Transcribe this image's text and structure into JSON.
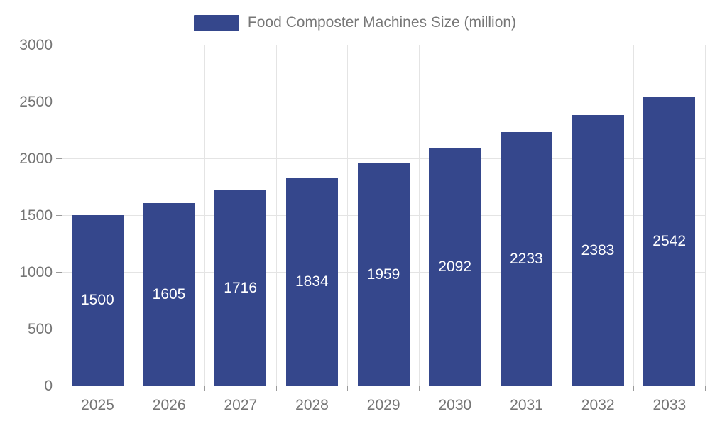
{
  "legend": {
    "label": "Food Composter Machines Size (million)",
    "swatch_color": "#35478C"
  },
  "chart_data": {
    "type": "bar",
    "title": "Food Composter Machines Size (million)",
    "categories": [
      "2025",
      "2026",
      "2027",
      "2028",
      "2029",
      "2030",
      "2031",
      "2032",
      "2033"
    ],
    "values": [
      1500,
      1605,
      1716,
      1834,
      1959,
      2092,
      2233,
      2383,
      2542
    ],
    "series_name": "Food Composter Machines Size (million)",
    "xlabel": "",
    "ylabel": "",
    "ylim": [
      0,
      3000
    ],
    "y_ticks": [
      0,
      500,
      1000,
      1500,
      2000,
      2500,
      3000
    ],
    "grid": true,
    "legend_position": "top",
    "bar_color": "#35478C",
    "bar_label_color": "#FFFFFF",
    "axis_color": "#9A9A9A",
    "grid_color": "#E4E4E4",
    "tick_label_color": "#757575"
  }
}
